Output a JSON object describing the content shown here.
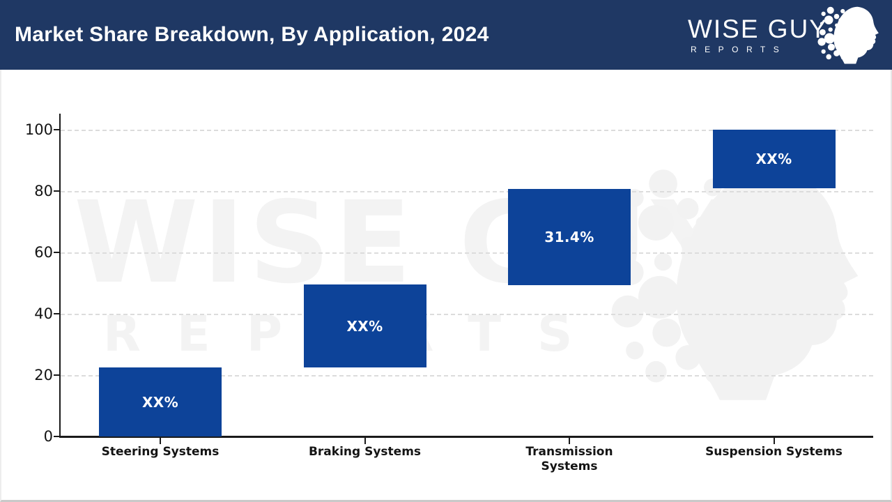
{
  "header": {
    "title": "Market Share Breakdown, By Application, 2024",
    "bg_color": "#1f3864",
    "logo": {
      "line1": "WISE GUY",
      "line2": "REPORTS"
    }
  },
  "watermark": {
    "line1": "WISE GUY",
    "line2": "REPORTS"
  },
  "chart_data": {
    "type": "bar",
    "variant": "floating-waterfall",
    "title": "Market Share Breakdown, By Application, 2024",
    "categories": [
      "Steering Systems",
      "Braking Systems",
      "Transmission\nSystems",
      "Suspension Systems"
    ],
    "segments": [
      {
        "category": "Steering Systems",
        "start": 0,
        "end": 22.5,
        "label": "XX%"
      },
      {
        "category": "Braking Systems",
        "start": 22.4,
        "end": 49.5,
        "label": "XX%"
      },
      {
        "category": "Transmission Systems",
        "start": 49.3,
        "end": 80.7,
        "label": "31.4%"
      },
      {
        "category": "Suspension Systems",
        "start": 80.9,
        "end": 100,
        "label": "XX%"
      }
    ],
    "y_ticks": [
      0,
      20,
      40,
      60,
      80,
      100
    ],
    "ylim": [
      0,
      105
    ],
    "xlabel": "",
    "ylabel": "",
    "grid": "horizontal-dashed",
    "legend": "none",
    "bar_color": "#0d4399",
    "bar_label_color": "#ffffff",
    "axis_color": "#1a1a1a",
    "gridline_color": "#dcdcdc",
    "tick_label_color": "#141414"
  }
}
